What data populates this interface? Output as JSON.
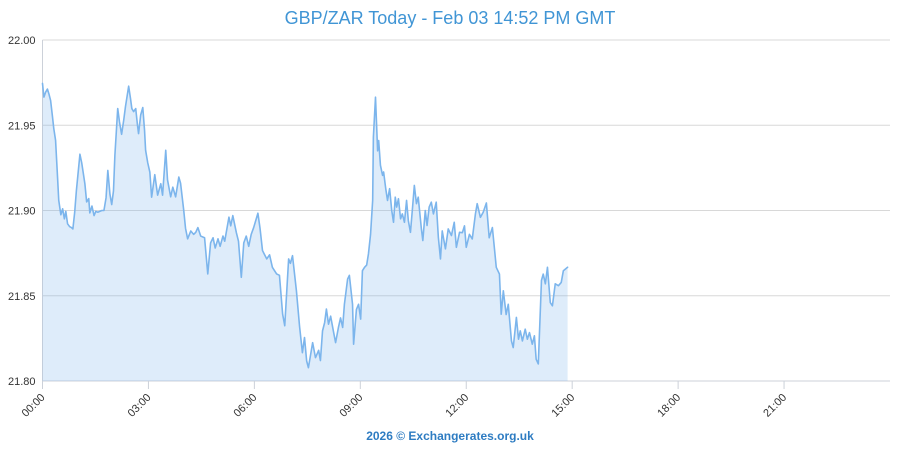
{
  "page": {
    "title": "GBP/ZAR Today - Feb 03 14:52 PM GMT",
    "footer": "2026 © Exchangerates.org.uk"
  },
  "colors": {
    "title": "#4095d5",
    "footer": "#2e7cc2",
    "line": "#7cb5ec",
    "fill": "rgba(124,181,236,0.25)",
    "gridline": "#d8d8d8",
    "axis": "#ccd1d9",
    "tick_label": "#333333"
  },
  "chart_data": {
    "type": "area",
    "title": "GBP/ZAR Today - Feb 03 14:52 PM GMT",
    "xlabel": "",
    "ylabel": "",
    "legend": "none",
    "grid": "horizontal",
    "x_ticks": [
      "00:00",
      "03:00",
      "06:00",
      "09:00",
      "12:00",
      "15:00",
      "18:00",
      "21:00"
    ],
    "x_tick_hours": [
      0,
      3,
      6,
      9,
      12,
      15,
      18,
      21
    ],
    "y_ticks": [
      "22.00",
      "21.95",
      "21.90",
      "21.85",
      "21.80"
    ],
    "y_tick_values": [
      22.0,
      21.95,
      21.9,
      21.85,
      21.8
    ],
    "ylim": [
      21.8,
      22.0
    ],
    "xlim_hours": [
      0,
      24
    ],
    "series": [
      {
        "name": "GBP/ZAR",
        "points": [
          [
            0.0,
            21.9745
          ],
          [
            0.04,
            21.9665
          ],
          [
            0.09,
            21.9695
          ],
          [
            0.14,
            21.9712
          ],
          [
            0.18,
            21.9685
          ],
          [
            0.23,
            21.9645
          ],
          [
            0.28,
            21.9555
          ],
          [
            0.32,
            21.948
          ],
          [
            0.37,
            21.9412
          ],
          [
            0.43,
            21.918
          ],
          [
            0.46,
            21.906
          ],
          [
            0.52,
            21.8975
          ],
          [
            0.57,
            21.901
          ],
          [
            0.62,
            21.8951
          ],
          [
            0.66,
            21.8995
          ],
          [
            0.71,
            21.8922
          ],
          [
            0.77,
            21.8905
          ],
          [
            0.82,
            21.89
          ],
          [
            0.86,
            21.8892
          ],
          [
            0.91,
            21.8986
          ],
          [
            0.96,
            21.9118
          ],
          [
            1.06,
            21.933
          ],
          [
            1.11,
            21.928
          ],
          [
            1.15,
            21.9226
          ],
          [
            1.2,
            21.9157
          ],
          [
            1.25,
            21.905
          ],
          [
            1.31,
            21.907
          ],
          [
            1.34,
            21.8986
          ],
          [
            1.4,
            21.9026
          ],
          [
            1.46,
            21.897
          ],
          [
            1.51,
            21.8995
          ],
          [
            1.57,
            21.899
          ],
          [
            1.62,
            21.8995
          ],
          [
            1.68,
            21.9
          ],
          [
            1.74,
            21.9
          ],
          [
            1.8,
            21.9075
          ],
          [
            1.85,
            21.9235
          ],
          [
            1.91,
            21.9095
          ],
          [
            1.96,
            21.9035
          ],
          [
            2.01,
            21.9115
          ],
          [
            2.05,
            21.9324
          ],
          [
            2.13,
            21.9598
          ],
          [
            2.18,
            21.952
          ],
          [
            2.24,
            21.9447
          ],
          [
            2.3,
            21.953
          ],
          [
            2.35,
            21.961
          ],
          [
            2.44,
            21.9729
          ],
          [
            2.49,
            21.966
          ],
          [
            2.53,
            21.9598
          ],
          [
            2.58,
            21.958
          ],
          [
            2.64,
            21.9598
          ],
          [
            2.69,
            21.95
          ],
          [
            2.72,
            21.9451
          ],
          [
            2.78,
            21.956
          ],
          [
            2.84,
            21.9604
          ],
          [
            2.89,
            21.947
          ],
          [
            2.92,
            21.9353
          ],
          [
            2.98,
            21.928
          ],
          [
            3.04,
            21.9225
          ],
          [
            3.09,
            21.9078
          ],
          [
            3.18,
            21.921
          ],
          [
            3.26,
            21.909
          ],
          [
            3.35,
            21.9157
          ],
          [
            3.4,
            21.909
          ],
          [
            3.49,
            21.9353
          ],
          [
            3.54,
            21.918
          ],
          [
            3.63,
            21.908
          ],
          [
            3.69,
            21.9137
          ],
          [
            3.77,
            21.908
          ],
          [
            3.86,
            21.9196
          ],
          [
            3.91,
            21.916
          ],
          [
            4.0,
            21.9
          ],
          [
            4.05,
            21.8896
          ],
          [
            4.11,
            21.8834
          ],
          [
            4.2,
            21.888
          ],
          [
            4.28,
            21.886
          ],
          [
            4.34,
            21.8872
          ],
          [
            4.4,
            21.89
          ],
          [
            4.48,
            21.885
          ],
          [
            4.59,
            21.884
          ],
          [
            4.68,
            21.8628
          ],
          [
            4.76,
            21.881
          ],
          [
            4.83,
            21.884
          ],
          [
            4.89,
            21.878
          ],
          [
            4.97,
            21.8834
          ],
          [
            5.03,
            21.879
          ],
          [
            5.11,
            21.885
          ],
          [
            5.16,
            21.882
          ],
          [
            5.28,
            21.8961
          ],
          [
            5.33,
            21.891
          ],
          [
            5.39,
            21.897
          ],
          [
            5.49,
            21.887
          ],
          [
            5.55,
            21.882
          ],
          [
            5.63,
            21.8608
          ],
          [
            5.7,
            21.881
          ],
          [
            5.77,
            21.885
          ],
          [
            5.84,
            21.879
          ],
          [
            5.91,
            21.886
          ],
          [
            5.98,
            21.89
          ],
          [
            6.1,
            21.8984
          ],
          [
            6.16,
            21.8896
          ],
          [
            6.23,
            21.8765
          ],
          [
            6.35,
            21.8716
          ],
          [
            6.43,
            21.874
          ],
          [
            6.51,
            21.8667
          ],
          [
            6.63,
            21.8628
          ],
          [
            6.71,
            21.862
          ],
          [
            6.8,
            21.8392
          ],
          [
            6.86,
            21.8324
          ],
          [
            6.97,
            21.8716
          ],
          [
            7.02,
            21.869
          ],
          [
            7.08,
            21.8735
          ],
          [
            7.19,
            21.853
          ],
          [
            7.28,
            21.832
          ],
          [
            7.36,
            21.8166
          ],
          [
            7.42,
            21.8255
          ],
          [
            7.48,
            21.8118
          ],
          [
            7.53,
            21.8078
          ],
          [
            7.65,
            21.8225
          ],
          [
            7.73,
            21.8137
          ],
          [
            7.82,
            21.818
          ],
          [
            7.87,
            21.812
          ],
          [
            7.93,
            21.8294
          ],
          [
            7.99,
            21.8343
          ],
          [
            8.04,
            21.8422
          ],
          [
            8.1,
            21.8333
          ],
          [
            8.16,
            21.838
          ],
          [
            8.24,
            21.829
          ],
          [
            8.3,
            21.8225
          ],
          [
            8.38,
            21.8314
          ],
          [
            8.44,
            21.837
          ],
          [
            8.5,
            21.8314
          ],
          [
            8.55,
            21.8451
          ],
          [
            8.64,
            21.8598
          ],
          [
            8.69,
            21.862
          ],
          [
            8.78,
            21.845
          ],
          [
            8.81,
            21.8216
          ],
          [
            8.89,
            21.842
          ],
          [
            8.95,
            21.845
          ],
          [
            9.01,
            21.8363
          ],
          [
            9.06,
            21.8647
          ],
          [
            9.12,
            21.8667
          ],
          [
            9.18,
            21.868
          ],
          [
            9.23,
            21.8745
          ],
          [
            9.29,
            21.886
          ],
          [
            9.35,
            21.906
          ],
          [
            9.37,
            21.943
          ],
          [
            9.43,
            21.9665
          ],
          [
            9.49,
            21.935
          ],
          [
            9.52,
            21.941
          ],
          [
            9.57,
            21.9265
          ],
          [
            9.63,
            21.9206
          ],
          [
            9.66,
            21.9226
          ],
          [
            9.72,
            21.9128
          ],
          [
            9.77,
            21.9059
          ],
          [
            9.83,
            21.9128
          ],
          [
            9.89,
            21.9
          ],
          [
            9.94,
            21.8931
          ],
          [
            9.99,
            21.9078
          ],
          [
            10.03,
            21.902
          ],
          [
            10.08,
            21.9069
          ],
          [
            10.14,
            21.8951
          ],
          [
            10.19,
            21.898
          ],
          [
            10.25,
            21.8931
          ],
          [
            10.31,
            21.9059
          ],
          [
            10.36,
            21.894
          ],
          [
            10.42,
            21.8872
          ],
          [
            10.48,
            21.902
          ],
          [
            10.53,
            21.9147
          ],
          [
            10.59,
            21.904
          ],
          [
            10.64,
            21.9078
          ],
          [
            10.73,
            21.8892
          ],
          [
            10.77,
            21.8824
          ],
          [
            10.84,
            21.9
          ],
          [
            10.89,
            21.8912
          ],
          [
            10.95,
            21.902
          ],
          [
            11.01,
            21.9049
          ],
          [
            11.07,
            21.898
          ],
          [
            11.15,
            21.9049
          ],
          [
            11.21,
            21.8843
          ],
          [
            11.27,
            21.8716
          ],
          [
            11.32,
            21.888
          ],
          [
            11.41,
            21.8775
          ],
          [
            11.49,
            21.8892
          ],
          [
            11.58,
            21.8853
          ],
          [
            11.66,
            21.8931
          ],
          [
            11.72,
            21.8784
          ],
          [
            11.81,
            21.8872
          ],
          [
            11.89,
            21.887
          ],
          [
            11.95,
            21.891
          ],
          [
            12.0,
            21.8784
          ],
          [
            12.09,
            21.886
          ],
          [
            12.17,
            21.8833
          ],
          [
            12.26,
            21.898
          ],
          [
            12.31,
            21.904
          ],
          [
            12.4,
            21.896
          ],
          [
            12.48,
            21.899
          ],
          [
            12.57,
            21.9044
          ],
          [
            12.65,
            21.884
          ],
          [
            12.74,
            21.89
          ],
          [
            12.85,
            21.8667
          ],
          [
            12.94,
            21.8627
          ],
          [
            12.99,
            21.8392
          ],
          [
            13.05,
            21.8529
          ],
          [
            13.13,
            21.839
          ],
          [
            13.19,
            21.845
          ],
          [
            13.28,
            21.8235
          ],
          [
            13.33,
            21.8196
          ],
          [
            13.42,
            21.8373
          ],
          [
            13.48,
            21.8245
          ],
          [
            13.53,
            21.8294
          ],
          [
            13.59,
            21.8235
          ],
          [
            13.67,
            21.8304
          ],
          [
            13.73,
            21.8245
          ],
          [
            13.79,
            21.8284
          ],
          [
            13.87,
            21.8216
          ],
          [
            13.93,
            21.8265
          ],
          [
            13.98,
            21.8127
          ],
          [
            14.04,
            21.81
          ],
          [
            14.13,
            21.859
          ],
          [
            14.18,
            21.8627
          ],
          [
            14.24,
            21.857
          ],
          [
            14.3,
            21.8667
          ],
          [
            14.38,
            21.846
          ],
          [
            14.44,
            21.8441
          ],
          [
            14.52,
            21.857
          ],
          [
            14.61,
            21.8559
          ],
          [
            14.69,
            21.8578
          ],
          [
            14.75,
            21.8647
          ],
          [
            14.81,
            21.8657
          ],
          [
            14.87,
            21.8667
          ]
        ]
      }
    ]
  }
}
